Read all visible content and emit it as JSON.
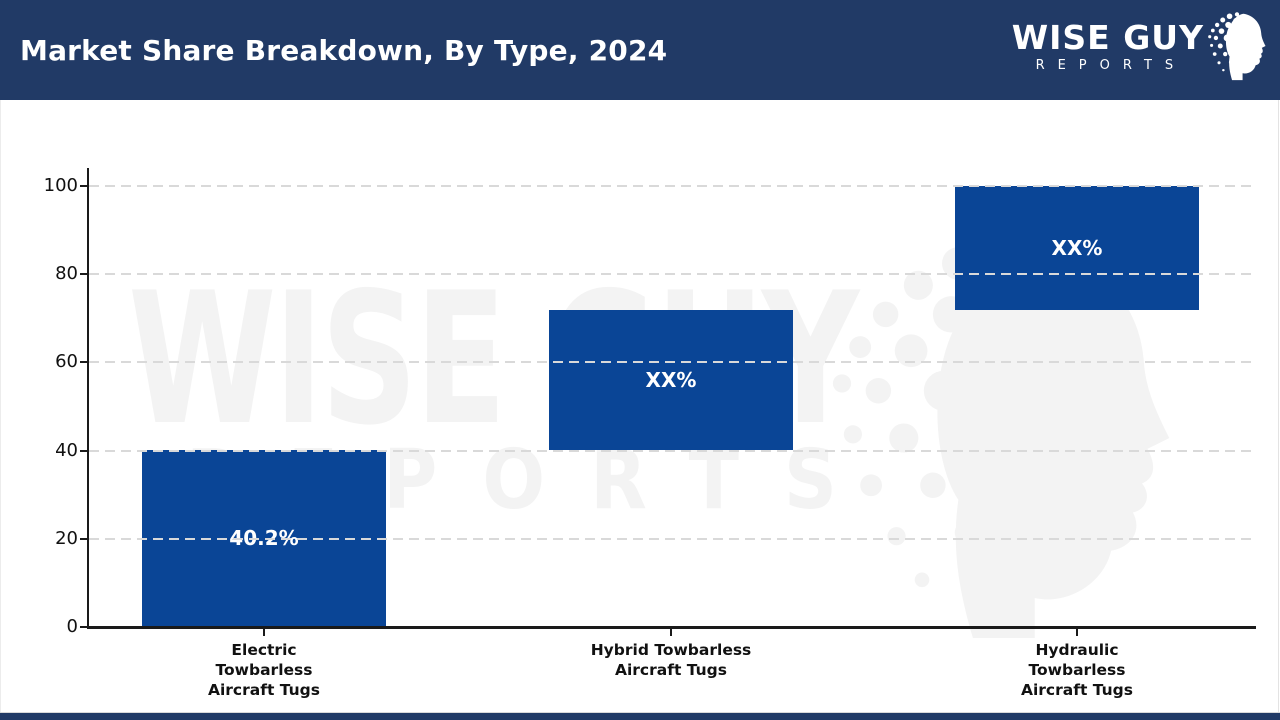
{
  "header": {
    "title": "Market Share Breakdown, By Type, 2024",
    "brand": {
      "line1": "WISE GUY",
      "line2": "REPORTS"
    },
    "bg_color": "#213a66",
    "text_color": "#ffffff"
  },
  "watermark": {
    "line1": "WISE GUY",
    "line2": "REPORTS"
  },
  "chart_data": {
    "type": "bar",
    "subtype": "stacked-waterfall",
    "title": "Market Share Breakdown, By Type, 2024",
    "categories": [
      [
        "Electric",
        "Towbarless",
        "Aircraft Tugs"
      ],
      [
        "Hybrid Towbarless",
        "Aircraft Tugs"
      ],
      [
        "Hydraulic",
        "Towbarless",
        "Aircraft Tugs"
      ]
    ],
    "segments": [
      {
        "label": "40.2%",
        "start": 0,
        "end": 40.2
      },
      {
        "label": "XX%",
        "start": 40.2,
        "end": 71.9
      },
      {
        "label": "XX%",
        "start": 71.9,
        "end": 100
      }
    ],
    "y_ticks": [
      0,
      20,
      40,
      60,
      80,
      100
    ],
    "ylim": [
      0,
      103.8
    ],
    "grid": true,
    "legend": false,
    "bar_color": "#0a4596",
    "bar_label_color": "#ffffff",
    "xlabel": "",
    "ylabel": ""
  }
}
